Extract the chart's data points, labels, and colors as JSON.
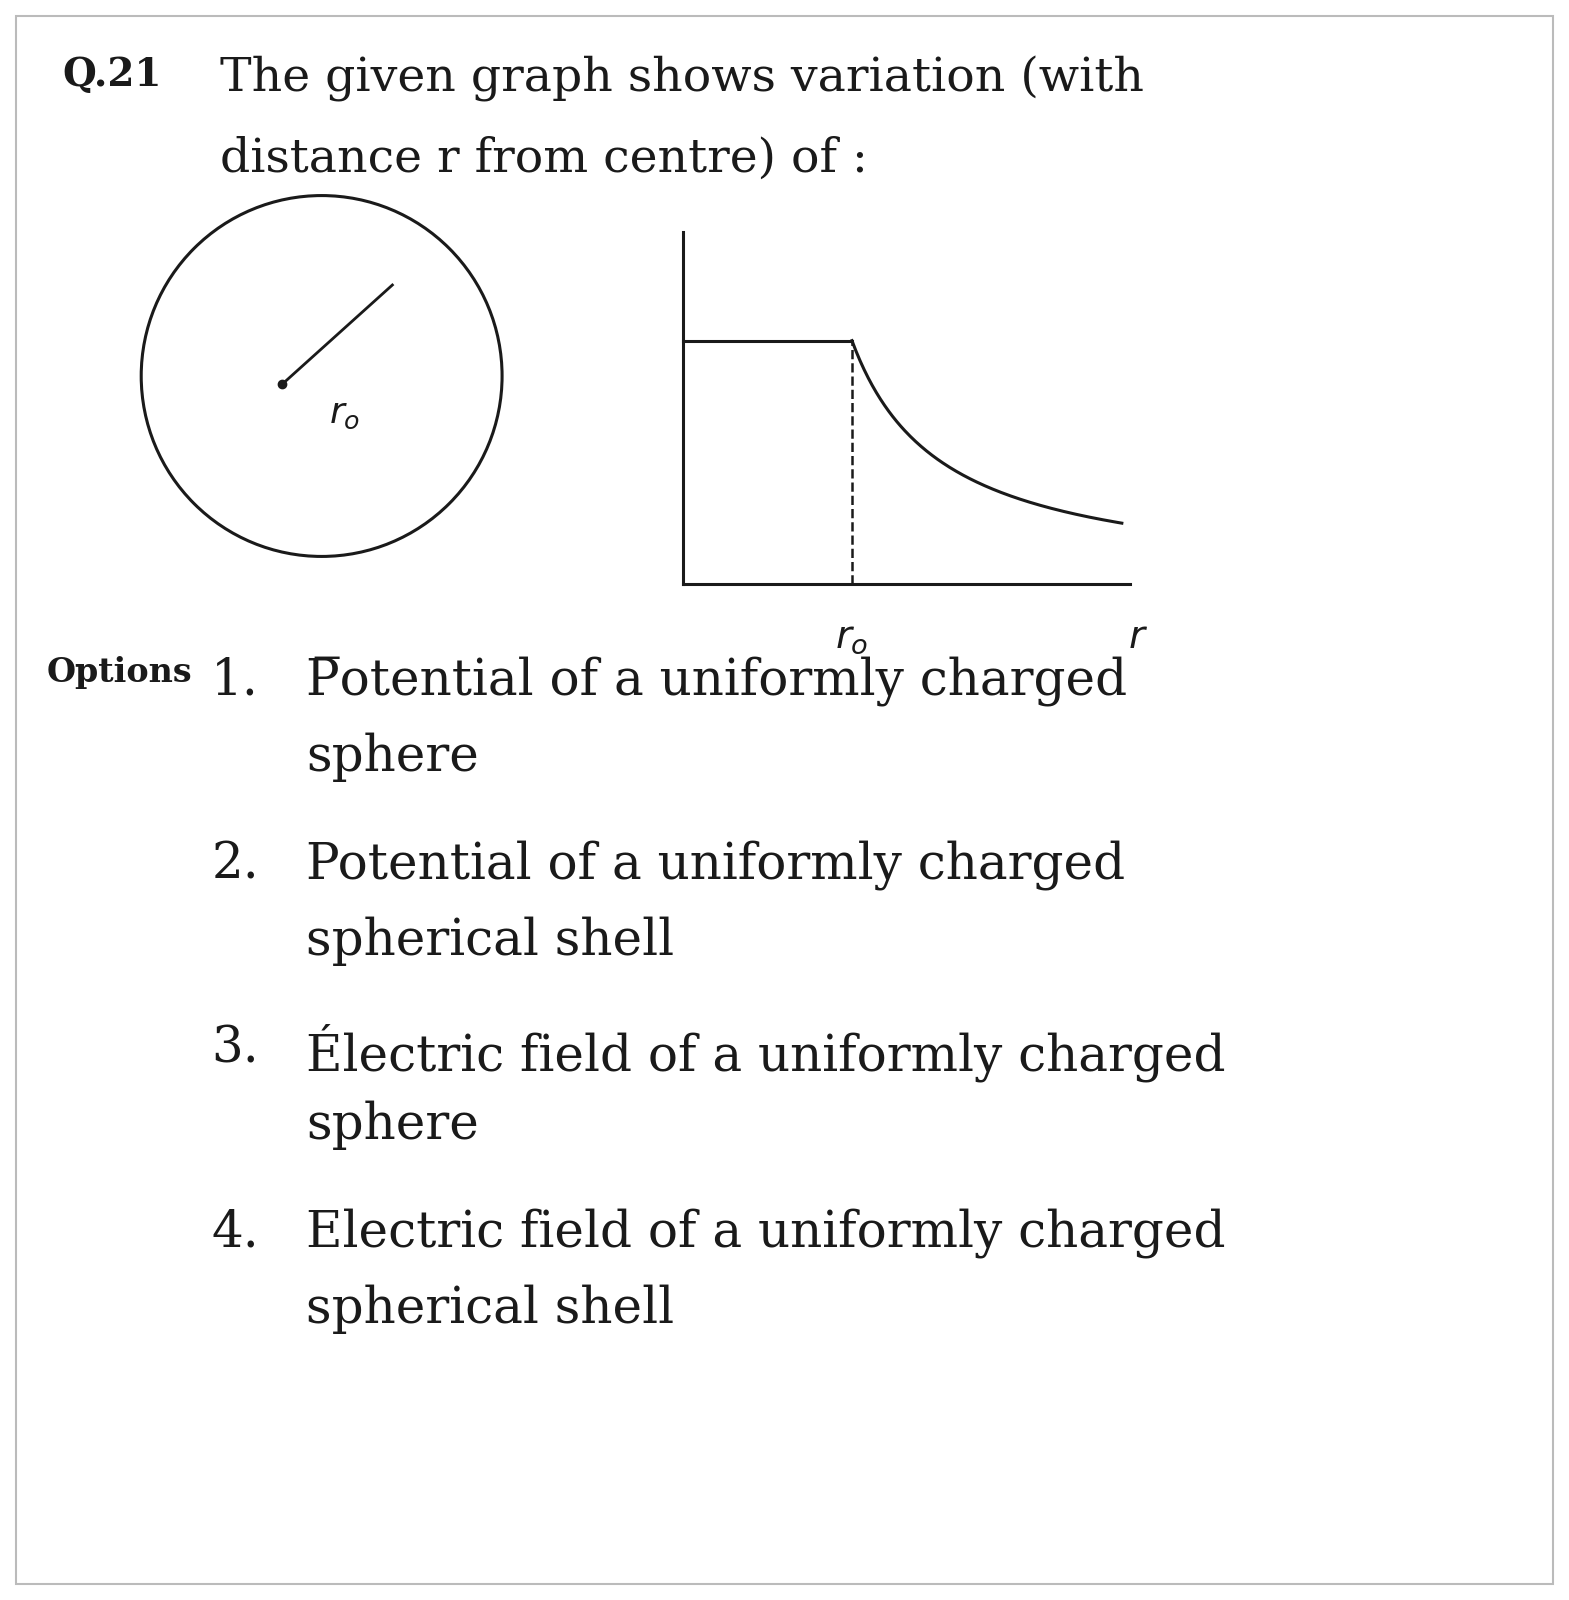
{
  "background_color": "#ffffff",
  "question_number": "Q.21",
  "question_text_line1": "The given graph shows variation (with",
  "question_text_line2": "distance r from centre) of :",
  "options_label": "Options",
  "option1_num": "1.",
  "option1_line1": "Potential of a uniformly charged",
  "option1_line2": "sphere",
  "option2_num": "2.",
  "option2_line1": "Potential of a uniformly charged",
  "option2_line2": "spherical shell",
  "option3_num": "3.",
  "option3_line1": "Électric field of a uniformly charged",
  "option3_line2": "sphere",
  "option4_num": "4.",
  "option4_line1": "Electric field of a uniformly charged",
  "option4_line2": "spherical shell",
  "font_color": "#1a1a1a",
  "line_color": "#1a1a1a",
  "border_color": "#bbbbbb",
  "qnum_fontsize": 28,
  "qtext_fontsize": 34,
  "options_label_fontsize": 24,
  "option_num_fontsize": 36,
  "option_text_fontsize": 36,
  "graph_label_fontsize": 28
}
